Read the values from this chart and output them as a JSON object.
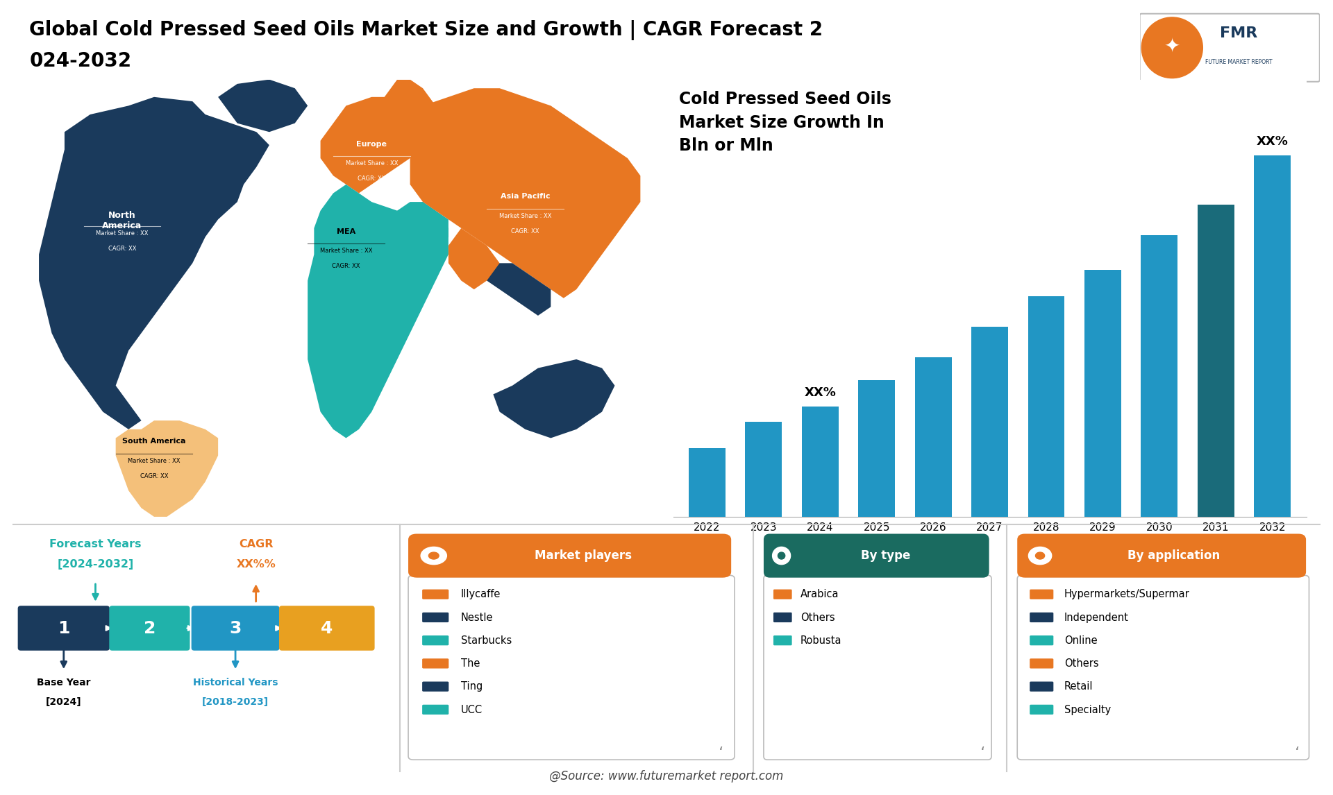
{
  "title_line1": "Global Cold Pressed Seed Oils Market Size and Growth | CAGR Forecast 2",
  "title_line2": "024-2032",
  "chart_subtitle": "Cold Pressed Seed Oils\nMarket Size Growth In\nBln or Mln",
  "bar_years": [
    "2022",
    "2023",
    "2024",
    "2025",
    "2026",
    "2027",
    "2028",
    "2029",
    "2030",
    "2031",
    "2032"
  ],
  "bar_heights": [
    1.8,
    2.5,
    2.9,
    3.6,
    4.2,
    5.0,
    5.8,
    6.5,
    7.4,
    8.2,
    9.5
  ],
  "bar_color_light": "#2196c4",
  "bar_color_dark": "#1a6b7a",
  "annotation_2024_idx": 2,
  "annotation_2032_idx": 10,
  "annotation_text": "XX%",
  "timeline_labels": [
    "1",
    "2",
    "3",
    "4"
  ],
  "timeline_colors": [
    "#1a3a5c",
    "#20b2aa",
    "#2196c4",
    "#e8a020"
  ],
  "forecast_label_line1": "Forecast Years",
  "forecast_label_line2": "[2024-2032]",
  "cagr_label_line1": "CAGR",
  "cagr_label_line2": "XX%%",
  "base_year_line1": "Base Year",
  "base_year_line2": "[2024]",
  "historical_line1": "Historical Years",
  "historical_line2": "[2018-2023]",
  "market_players_label": "Market players",
  "market_players_color": "#e87722",
  "market_players": [
    "Illycaffe",
    "Nestle",
    "Starbucks",
    "The",
    "Ting",
    "UCC"
  ],
  "by_type_label": "By type",
  "by_type_color": "#1a6b60",
  "by_type": [
    "Arabica",
    "Others",
    "Robusta"
  ],
  "by_application_label": "By application",
  "by_application_color": "#e87722",
  "by_application": [
    "Hypermarkets/Supermar",
    "Independent",
    "Online",
    "Others",
    "Retail",
    "Specialty"
  ],
  "source_text": "@Source: www.futuremarket report.com",
  "bg_color": "#ffffff",
  "text_color": "#000000",
  "teal_color": "#20b2aa",
  "orange_color": "#e87722",
  "dark_blue": "#1a3a5c",
  "mid_blue": "#2196c4",
  "dark_teal": "#1a6b60",
  "light_tan": "#f4c07a",
  "separator_color": "#cccccc",
  "item_colors_mp": [
    "#e87722",
    "#1a3a5c",
    "#20b2aa",
    "#e87722",
    "#1a3a5c",
    "#20b2aa"
  ],
  "item_colors_bt": [
    "#e87722",
    "#1a3a5c",
    "#20b2aa"
  ],
  "item_colors_ba": [
    "#e87722",
    "#1a3a5c",
    "#20b2aa",
    "#e87722",
    "#1a3a5c",
    "#20b2aa"
  ]
}
